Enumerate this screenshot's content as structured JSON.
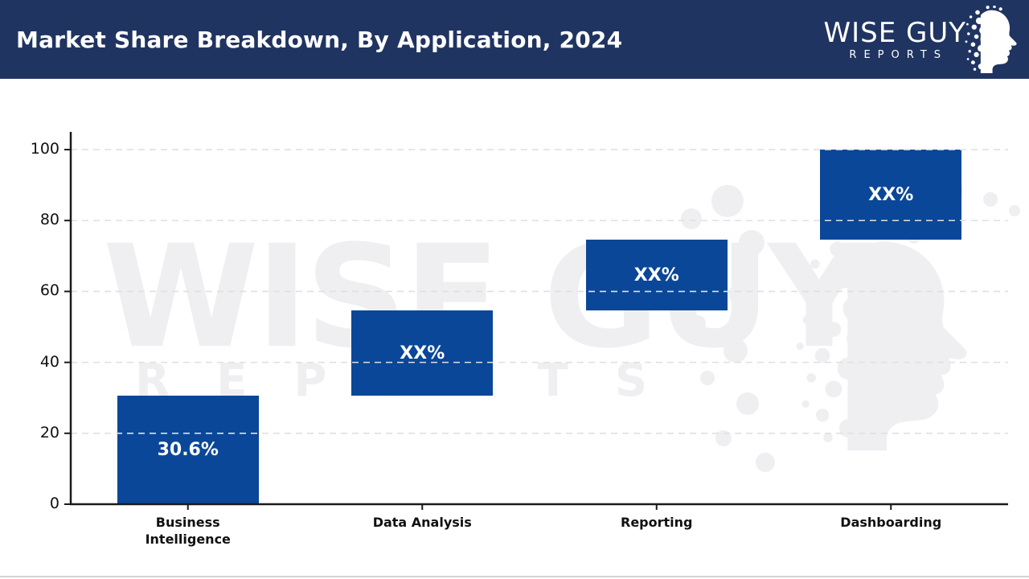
{
  "header": {
    "title": "Market Share Breakdown, By Application, 2024",
    "logo": {
      "line1": "WISE GUY",
      "line2": "REPORTS"
    }
  },
  "watermark": {
    "line1": "WISE GUY",
    "line2": "REPORTS"
  },
  "colors": {
    "header_bg": "#203461",
    "bar": "#0a4798",
    "bar_label": "#ffffff",
    "axis": "#1a1a1a",
    "grid": "#e0e0e0",
    "tick_label": "#111111",
    "watermark": "#efeff2"
  },
  "chart_data": {
    "type": "bar",
    "subtype": "waterfall",
    "title": "Market Share Breakdown, By Application, 2024",
    "xlabel": "",
    "ylabel": "",
    "categories": [
      "Business Intelligence",
      "Data Analysis",
      "Reporting",
      "Dashboarding"
    ],
    "category_label_lines": [
      [
        "Business",
        "Intelligence"
      ],
      [
        "Data Analysis"
      ],
      [
        "Reporting"
      ],
      [
        "Dashboarding"
      ]
    ],
    "segments": [
      {
        "category": "Business Intelligence",
        "start": 0,
        "end": 30.6,
        "label": "30.6%"
      },
      {
        "category": "Data Analysis",
        "start": 30.6,
        "end": 54.6,
        "label": "XX%"
      },
      {
        "category": "Reporting",
        "start": 54.6,
        "end": 74.6,
        "label": "XX%"
      },
      {
        "category": "Dashboarding",
        "start": 74.6,
        "end": 100,
        "label": "XX%"
      }
    ],
    "yticks": [
      0,
      20,
      40,
      60,
      80,
      100
    ],
    "ylim": [
      0,
      105
    ],
    "grid": "dashed-horizontal",
    "legend": "none"
  }
}
